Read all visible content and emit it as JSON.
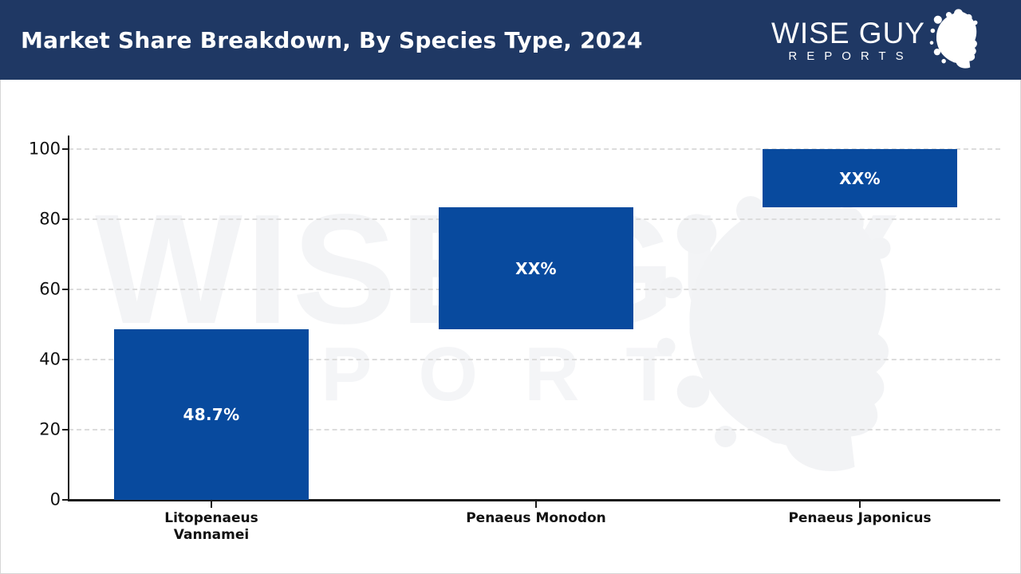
{
  "header": {
    "title": "Market Share Breakdown, By Species Type, 2024",
    "bg_color": "#1f3864",
    "logo": {
      "wordmark": "WISE GUY",
      "subtext": "REPORTS"
    }
  },
  "watermark": {
    "wordmark": "WISE GUY",
    "subtext": "REPORTS"
  },
  "chart_data": {
    "type": "bar",
    "subtype": "waterfall",
    "title": "Market Share Breakdown, By Species Type, 2024",
    "categories": [
      {
        "name": "Litopenaeus Vannamei",
        "display": "Litopenaeus\nVannamei"
      },
      {
        "name": "Penaeus Monodon",
        "display": "Penaeus Monodon"
      },
      {
        "name": "Penaeus Japonicus",
        "display": "Penaeus Japonicus"
      }
    ],
    "segments": [
      {
        "category": "Litopenaeus Vannamei",
        "start": 0,
        "end": 48.7,
        "label": "48.7%"
      },
      {
        "category": "Penaeus Monodon",
        "start": 48.7,
        "end": 83.3,
        "label": "XX%"
      },
      {
        "category": "Penaeus Japonicus",
        "start": 83.3,
        "end": 100,
        "label": "XX%"
      }
    ],
    "ylim": [
      0,
      100
    ],
    "yticks": [
      0,
      20,
      40,
      60,
      80,
      100
    ],
    "grid": "horizontal-dashed",
    "grid_color": "#dcdcdc",
    "bar_color": "#084a9e",
    "bar_label_color": "#ffffff",
    "legend": "none"
  }
}
